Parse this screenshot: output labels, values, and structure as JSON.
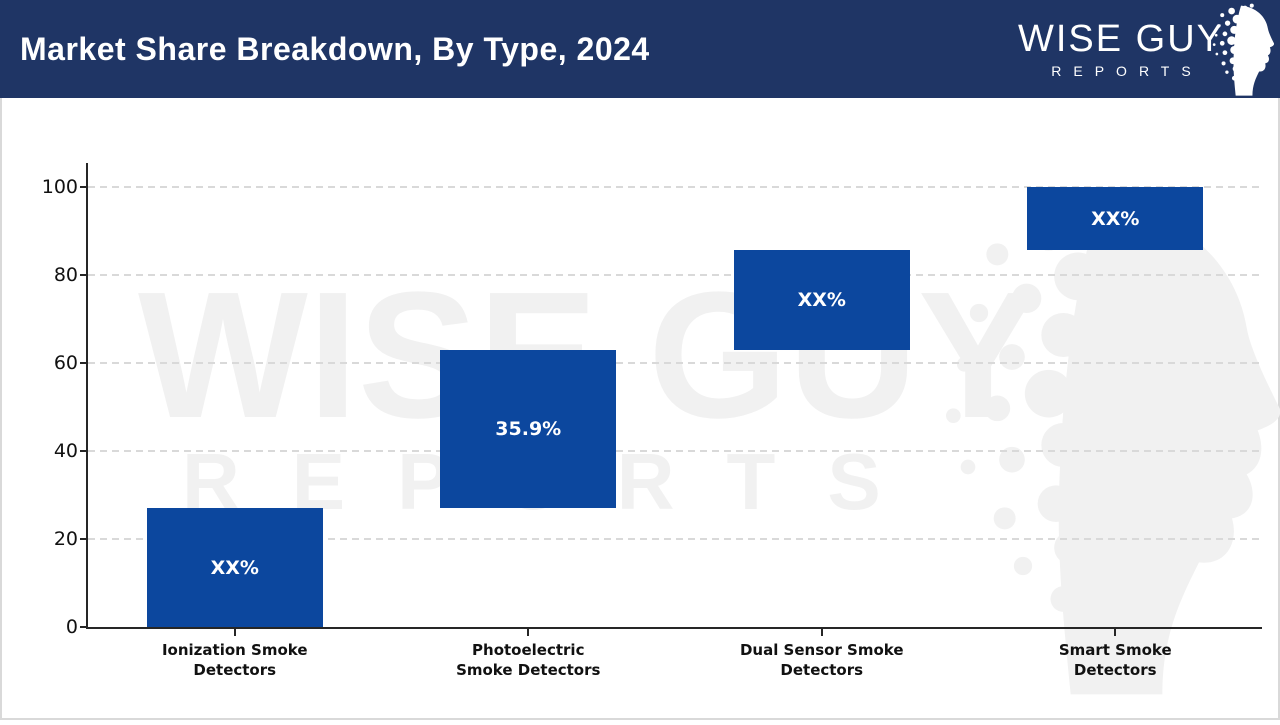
{
  "header": {
    "title": "Market Share Breakdown, By Type, 2024",
    "bg_color": "#1f3565",
    "logo": {
      "line1": "WISE GUY",
      "line2": "REPORTS"
    }
  },
  "watermark": {
    "line1": "WISE GUY",
    "line2": "REPORTS"
  },
  "colors": {
    "bar": "#0c479e",
    "bar_label": "#ffffff",
    "gridline": "#d9d9d9",
    "axis": "#262626",
    "header_bg": "#1f3565",
    "watermark": "#f1f1f1"
  },
  "chart_data": {
    "type": "bar",
    "variant": "waterfall",
    "title": "Market Share Breakdown, By Type, 2024",
    "xlabel": "",
    "ylabel": "",
    "ylim": [
      0,
      100
    ],
    "yticks": [
      0,
      20,
      40,
      60,
      80,
      100
    ],
    "grid": "horizontal-dashed",
    "legend": "none",
    "categories": [
      "Ionization Smoke Detectors",
      "Photoelectric Smoke Detectors",
      "Dual Sensor Smoke Detectors",
      "Smart Smoke Detectors"
    ],
    "category_label_lines": [
      [
        "Ionization Smoke",
        "Detectors"
      ],
      [
        "Photoelectric",
        "Smoke Detectors"
      ],
      [
        "Dual Sensor Smoke",
        "Detectors"
      ],
      [
        "Smart Smoke",
        "Detectors"
      ]
    ],
    "segments": [
      {
        "category": "Ionization Smoke Detectors",
        "start": 0,
        "end": 27.0,
        "value": 27.0,
        "label": "XX%"
      },
      {
        "category": "Photoelectric Smoke Detectors",
        "start": 27.0,
        "end": 62.9,
        "value": 35.9,
        "label": "35.9%"
      },
      {
        "category": "Dual Sensor Smoke Detectors",
        "start": 62.9,
        "end": 85.6,
        "value": 22.7,
        "label": "XX%"
      },
      {
        "category": "Smart Smoke Detectors",
        "start": 85.6,
        "end": 100.0,
        "value": 14.4,
        "label": "XX%"
      }
    ]
  }
}
